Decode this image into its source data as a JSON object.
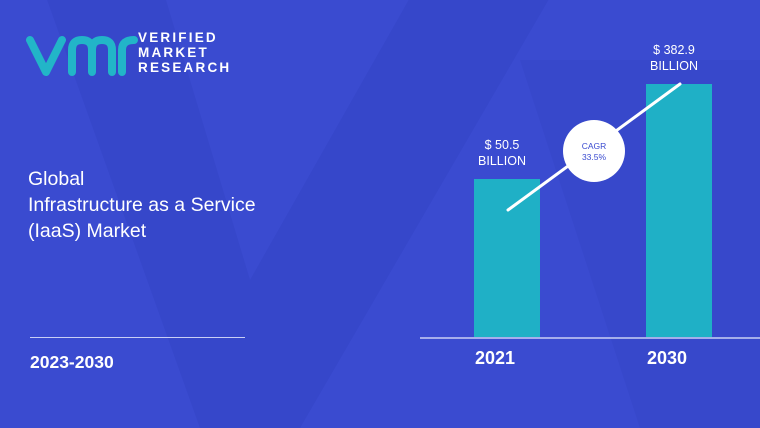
{
  "brand": {
    "line1": "VERIFIED",
    "line2": "MARKET",
    "line3": "RESEARCH",
    "logo_letters": "vmr",
    "logo_color": "#22b5c8"
  },
  "report": {
    "title_line1": "Global",
    "title_line2": "Infrastructure as a Service",
    "title_line3": "(IaaS) Market",
    "period": "2023-2030"
  },
  "colors": {
    "background": "#3a4bd0",
    "bar": "#1fb0c6",
    "accent_text": "#ffffff"
  },
  "chart_data": {
    "type": "bar",
    "categories": [
      "2021",
      "2030"
    ],
    "values": [
      50.5,
      382.9
    ],
    "value_labels": [
      [
        "$ 50.5",
        "BILLION"
      ],
      [
        "$ 382.9",
        "BILLION"
      ]
    ],
    "annotation": {
      "line1": "CAGR",
      "line2": "33.5%"
    },
    "ylim": [
      0,
      430
    ],
    "grid": false,
    "legend": "none"
  }
}
